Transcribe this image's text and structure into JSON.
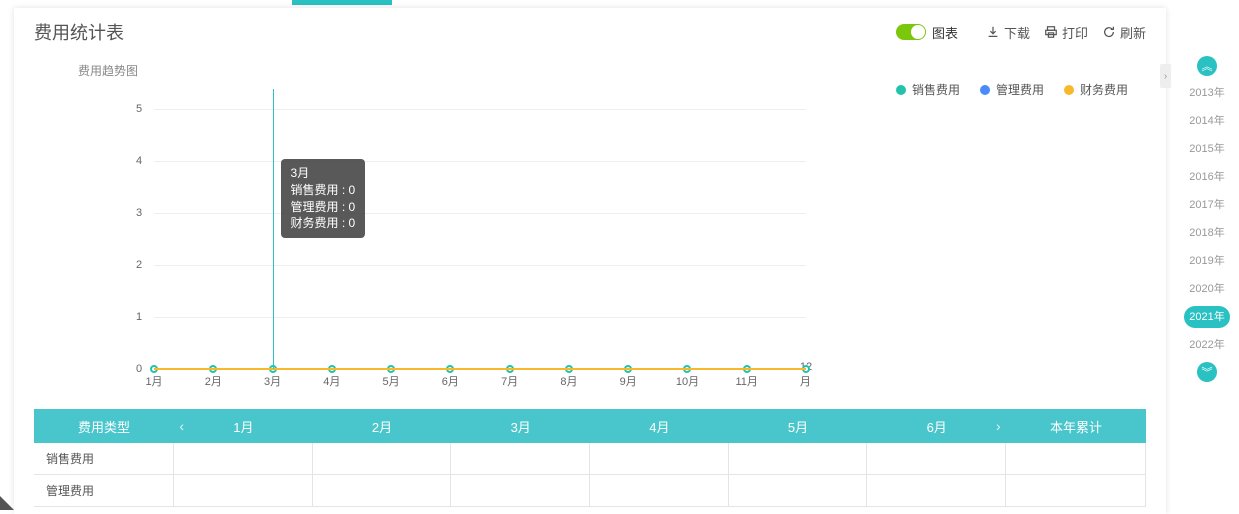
{
  "colors": {
    "accent": "#2ac1c2",
    "toggle_on": "#7ac70c",
    "series1": "#22c3aa",
    "series2": "#4a8bfc",
    "series3": "#f7b92b",
    "table_header": "#49c6cc",
    "grid": "#eeeeee",
    "tooltip_bg": "rgba(60,60,60,0.85)"
  },
  "header": {
    "title": "费用统计表",
    "toggle_label": "图表",
    "download": "下载",
    "print": "打印",
    "refresh": "刷新"
  },
  "chart": {
    "title": "费用趋势图",
    "type": "line",
    "legend": [
      {
        "label": "销售费用",
        "color": "#22c3aa"
      },
      {
        "label": "管理费用",
        "color": "#4a8bfc"
      },
      {
        "label": "财务费用",
        "color": "#f7b92b"
      }
    ],
    "x_labels": [
      "1月",
      "2月",
      "3月",
      "4月",
      "5月",
      "6月",
      "7月",
      "8月",
      "9月",
      "10月",
      "11月",
      "12月"
    ],
    "y_ticks": [
      0,
      1,
      2,
      3,
      4,
      5
    ],
    "ylim": [
      0,
      5
    ],
    "series": [
      {
        "name": "销售费用",
        "color": "#22c3aa",
        "values": [
          0,
          0,
          0,
          0,
          0,
          0,
          0,
          0,
          0,
          0,
          0,
          0
        ]
      },
      {
        "name": "管理费用",
        "color": "#4a8bfc",
        "values": [
          0,
          0,
          0,
          0,
          0,
          0,
          0,
          0,
          0,
          0,
          0,
          0
        ]
      },
      {
        "name": "财务费用",
        "color": "#f7b92b",
        "values": [
          0,
          0,
          0,
          0,
          0,
          0,
          0,
          0,
          0,
          0,
          0,
          0
        ]
      }
    ],
    "cursor_index": 2,
    "tooltip": {
      "title": "3月",
      "lines": [
        {
          "label": "销售费用",
          "value": "0"
        },
        {
          "label": "管理费用",
          "value": "0"
        },
        {
          "label": "财务费用",
          "value": "0"
        }
      ]
    }
  },
  "table": {
    "type_header": "费用类型",
    "visible_months": [
      "1月",
      "2月",
      "3月",
      "4月",
      "5月",
      "6月"
    ],
    "total_header": "本年累计",
    "rows": [
      {
        "label": "销售费用"
      },
      {
        "label": "管理费用"
      }
    ]
  },
  "year_panel": {
    "years": [
      "2013年",
      "2014年",
      "2015年",
      "2016年",
      "2017年",
      "2018年",
      "2019年",
      "2020年",
      "2021年",
      "2022年"
    ],
    "active": "2021年",
    "up": "︽",
    "down": "︾"
  }
}
